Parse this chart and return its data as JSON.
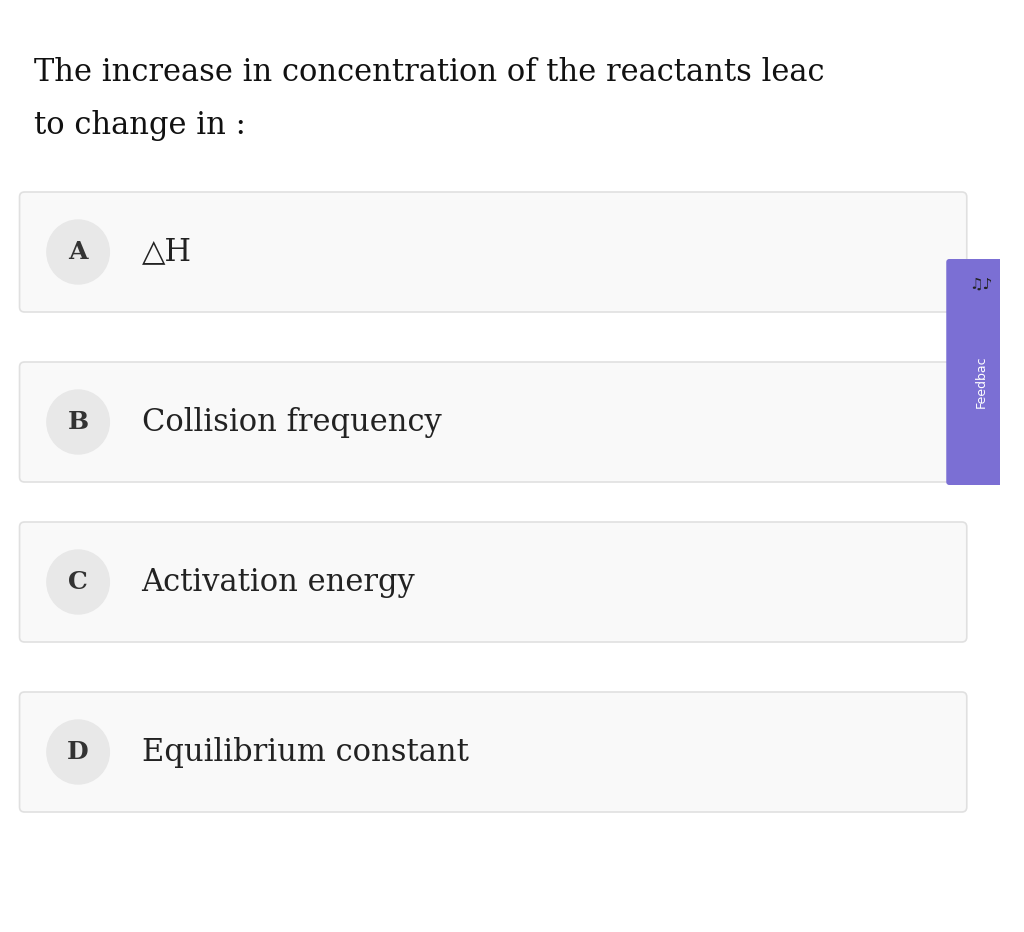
{
  "title_line1": "The increase in concentration of the reactants leac",
  "title_line2": "to change in :",
  "options": [
    {
      "letter": "A",
      "text": "△H"
    },
    {
      "letter": "B",
      "text": "Collision frequency"
    },
    {
      "letter": "C",
      "text": "Activation energy"
    },
    {
      "letter": "D",
      "text": "Equilibrium constant"
    }
  ],
  "bg_color": "#ffffff",
  "card_bg": "#f9f9f9",
  "card_border": "#e0e0e0",
  "letter_bg": "#e8e8e8",
  "letter_color": "#333333",
  "text_color": "#222222",
  "title_color": "#111111",
  "title_fontsize": 22,
  "option_fontsize": 22,
  "letter_fontsize": 18,
  "feedback_bg": "#7b6fd4",
  "feedback_text": "Feedbac",
  "feedback_color": "#ffffff"
}
